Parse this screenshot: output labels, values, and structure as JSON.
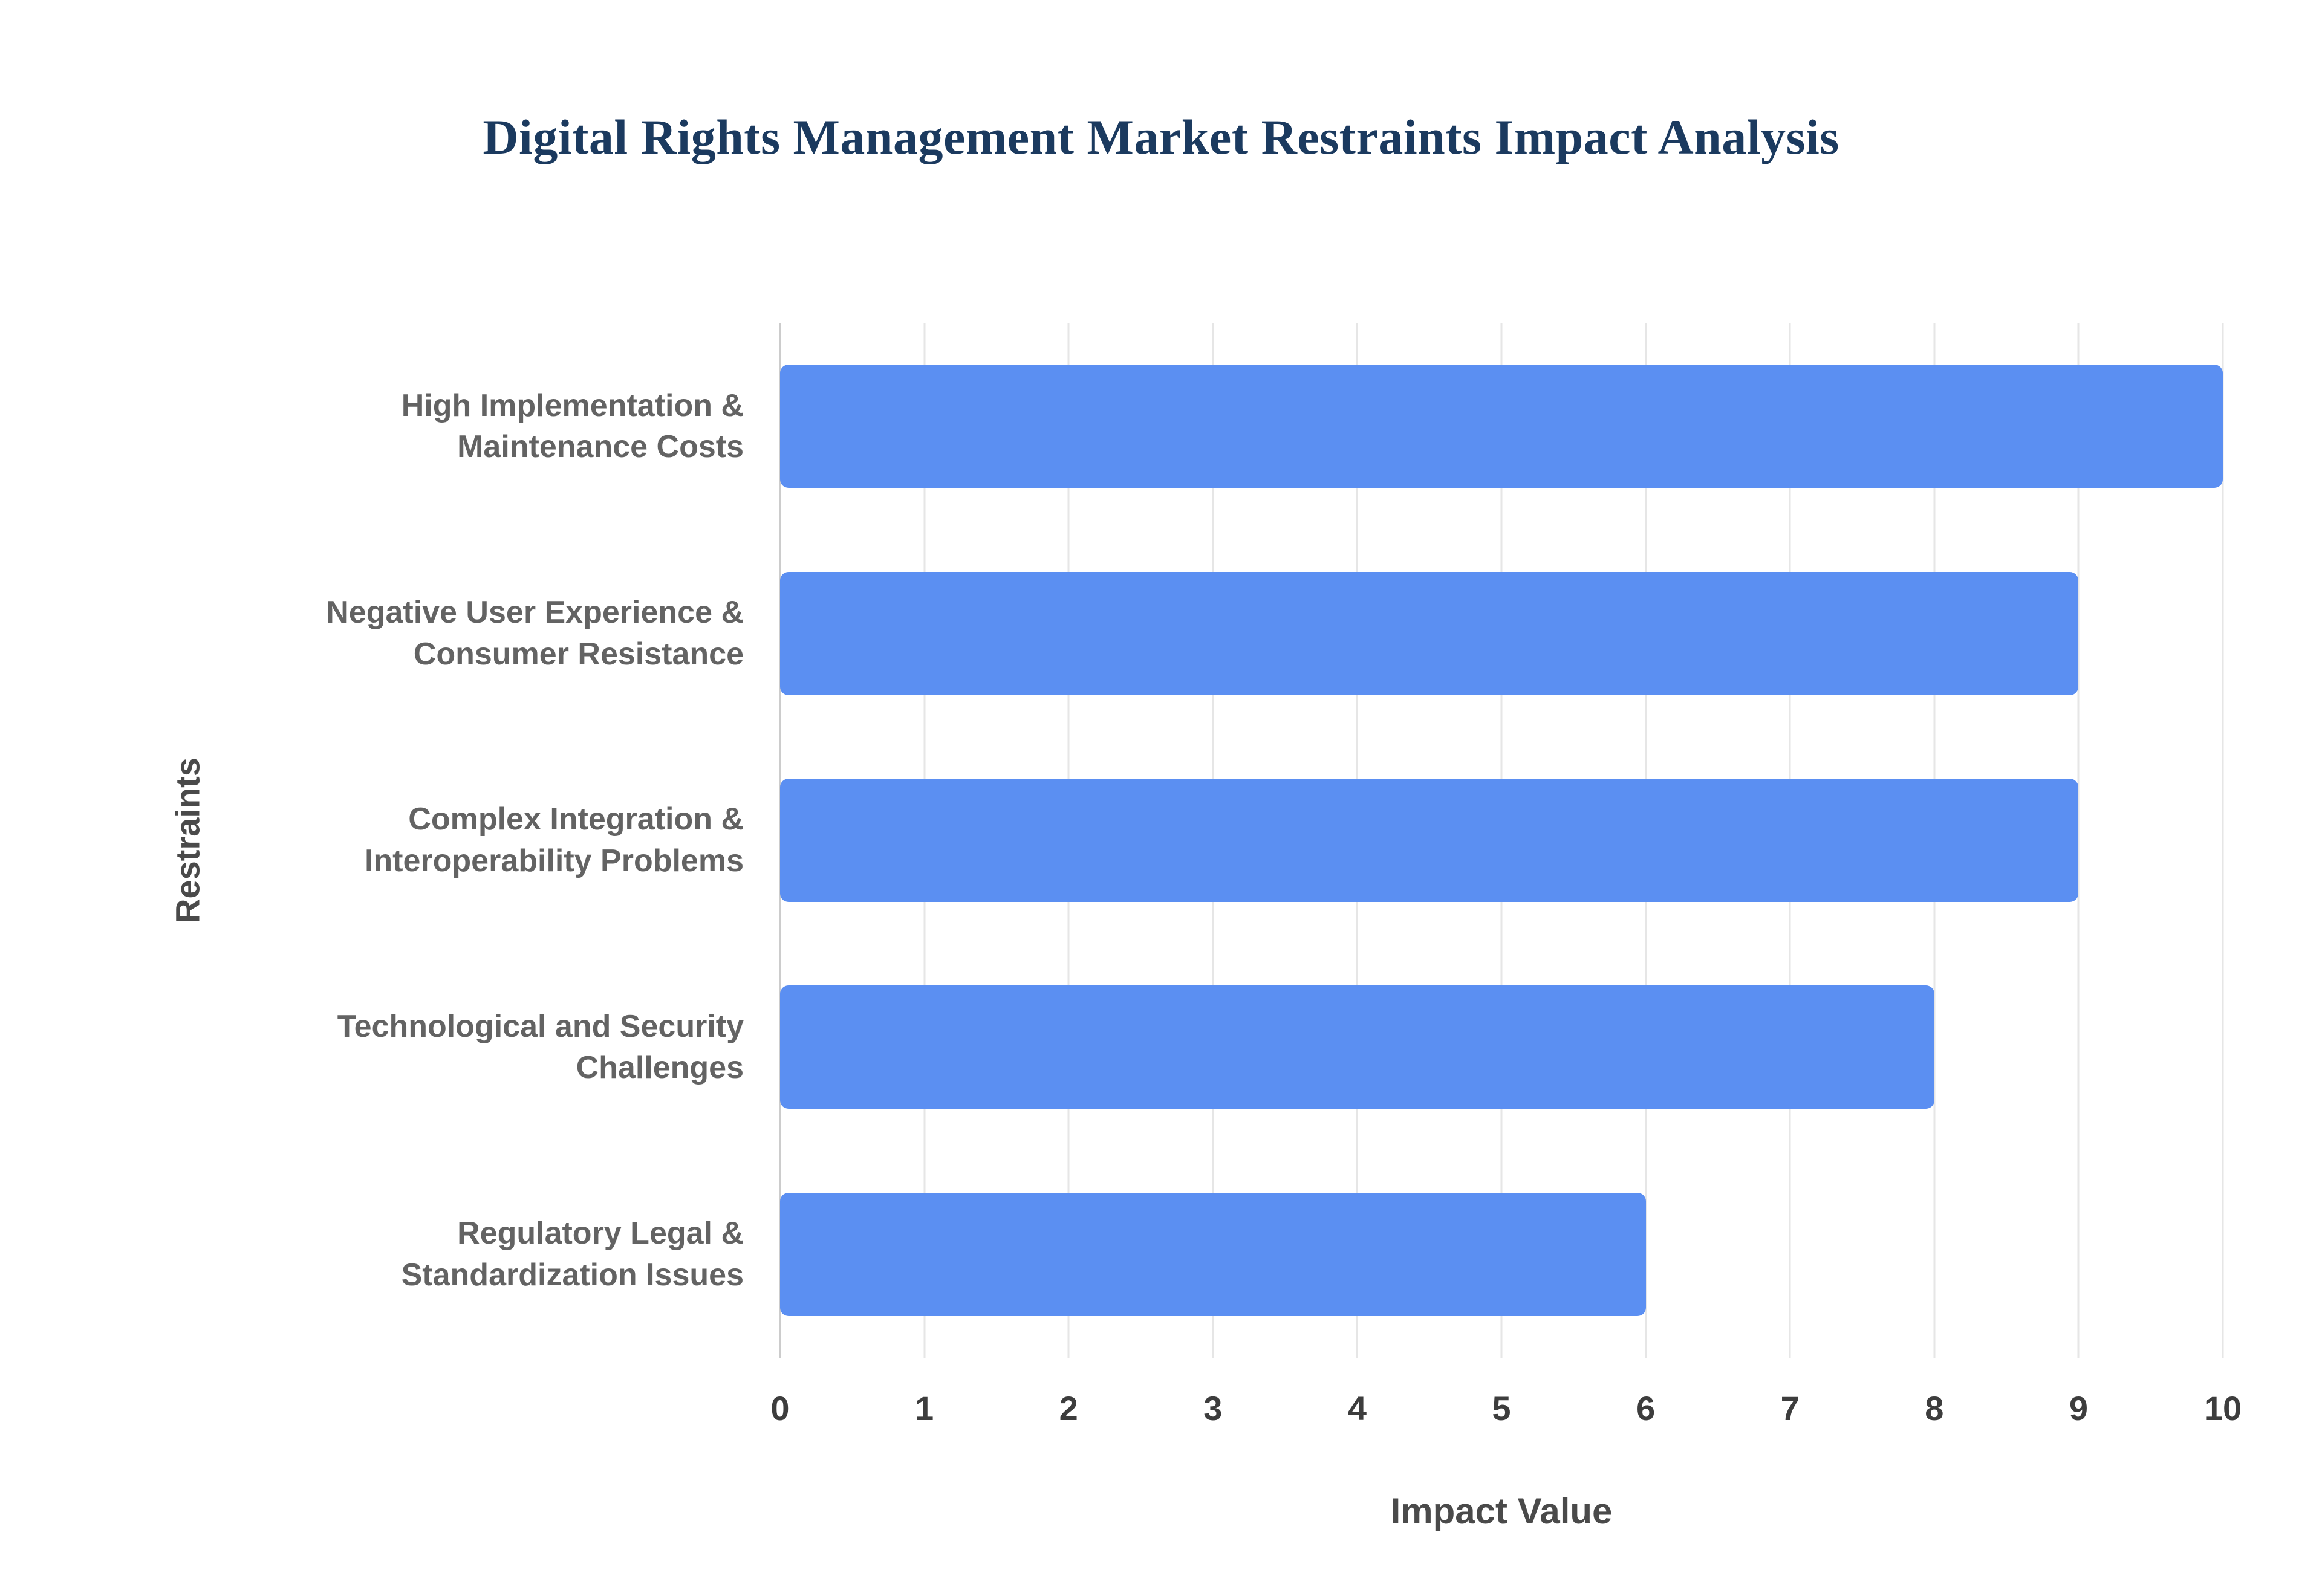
{
  "page": {
    "background": "#ffffff",
    "title_color": "#1b3a5f"
  },
  "chart_data": {
    "type": "bar",
    "orientation": "horizontal",
    "title": "Digital Rights Management Market Restraints Impact Analysis",
    "xlabel": "Impact Value",
    "ylabel": "Restraints",
    "xlim": [
      0,
      10
    ],
    "x_ticks": [
      0,
      1,
      2,
      3,
      4,
      5,
      6,
      7,
      8,
      9,
      10
    ],
    "grid": true,
    "legend": false,
    "bar_color": "#5b8ff2",
    "categories": [
      "High Implementation & Maintenance Costs",
      "Negative User Experience & Consumer Resistance",
      "Complex Integration & Interoperability Problems",
      "Technological and Security Challenges",
      "Regulatory Legal & Standardization Issues"
    ],
    "values": [
      10,
      9,
      9,
      8,
      6
    ]
  }
}
